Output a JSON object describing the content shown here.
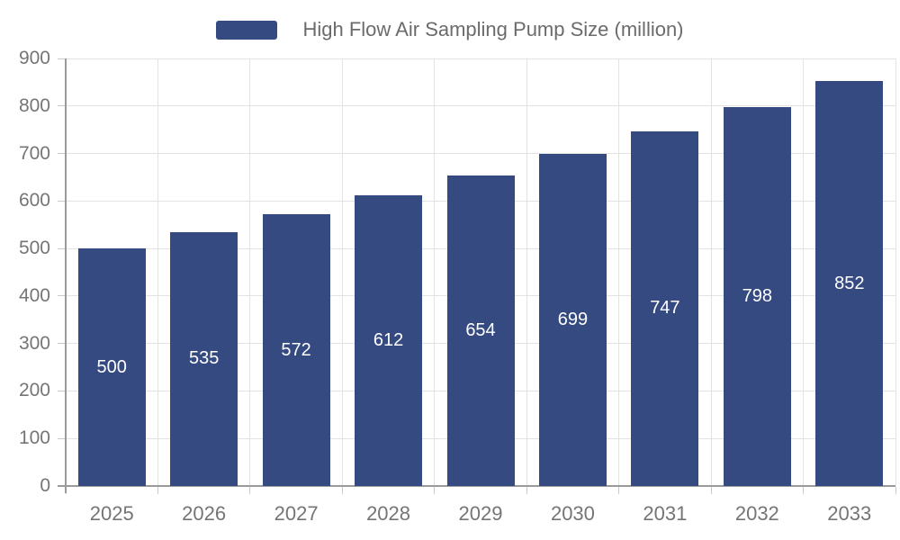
{
  "chart_data": {
    "type": "bar",
    "title": "",
    "categories": [
      "2025",
      "2026",
      "2027",
      "2028",
      "2029",
      "2030",
      "2031",
      "2032",
      "2033"
    ],
    "series": [
      {
        "name": "High Flow Air Sampling Pump Size (million)",
        "values": [
          500,
          535,
          572,
          612,
          654,
          699,
          747,
          798,
          852
        ]
      }
    ],
    "xlabel": "",
    "ylabel": "",
    "ylim": [
      0,
      900
    ],
    "ytick_step": 100,
    "ytick_labels": [
      "0",
      "100",
      "200",
      "300",
      "400",
      "500",
      "600",
      "700",
      "800",
      "900"
    ],
    "grid": true,
    "legend_position": "top-center",
    "value_labels": "inside-center"
  },
  "colors": {
    "bar": "#364a82",
    "bar_value_text": "#ffffff",
    "axis_line": "#9a9a9a",
    "grid_line": "#e3e3e3",
    "tick_mark": "#c9c9c9",
    "tick_text": "#757575",
    "legend_text": "#6b6b6b",
    "background": "#ffffff"
  }
}
